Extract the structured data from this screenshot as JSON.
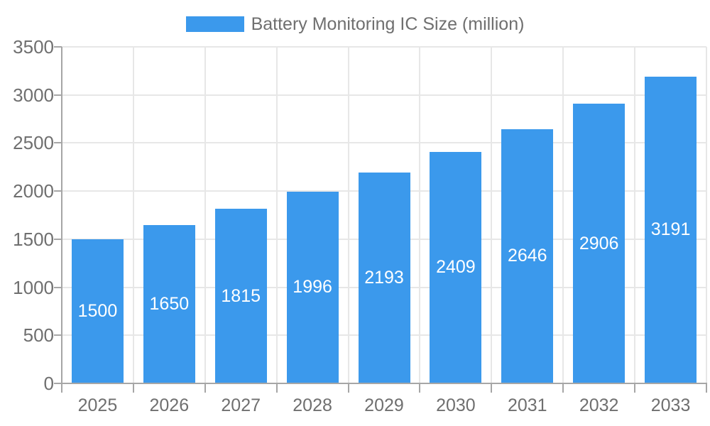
{
  "chart_data": {
    "type": "bar",
    "title": "Battery Monitoring IC Size (million)",
    "categories": [
      "2025",
      "2026",
      "2027",
      "2028",
      "2029",
      "2030",
      "2031",
      "2032",
      "2033"
    ],
    "values": [
      1500,
      1650,
      1815,
      1996,
      2193,
      2409,
      2646,
      2906,
      3191
    ],
    "series": [
      {
        "name": "Battery Monitoring IC Size (million)",
        "values": [
          1500,
          1650,
          1815,
          1996,
          2193,
          2409,
          2646,
          2906,
          3191
        ]
      }
    ],
    "xlabel": "",
    "ylabel": "",
    "ylim": [
      0,
      3500
    ],
    "ytick_step": 500,
    "yticks": [
      0,
      500,
      1000,
      1500,
      2000,
      2500,
      3000,
      3500
    ],
    "grid": true,
    "legend_position": "top-center",
    "value_labels": "inside-center",
    "bar_color": "#3B99EC",
    "value_label_color": "#FFFFFF",
    "grid_color": "#E7E7E7",
    "axis_color": "#A6A6A6",
    "tick_label_color": "#6F6F6F"
  }
}
